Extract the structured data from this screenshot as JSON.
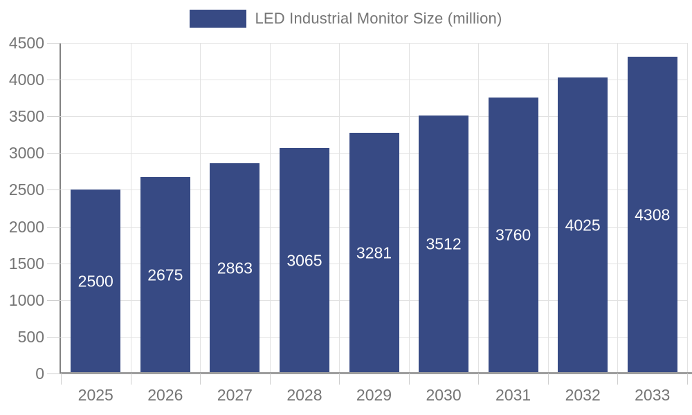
{
  "legend": {
    "label": "LED Industrial Monitor Size (million)",
    "swatch_color": "#374a84"
  },
  "chart_data": {
    "type": "bar",
    "title": "",
    "xlabel": "",
    "ylabel": "",
    "categories": [
      "2025",
      "2026",
      "2027",
      "2028",
      "2029",
      "2030",
      "2031",
      "2032",
      "2033"
    ],
    "series": [
      {
        "name": "LED Industrial Monitor Size (million)",
        "values": [
          2500,
          2675,
          2863,
          3065,
          3281,
          3512,
          3760,
          4025,
          4308
        ]
      }
    ],
    "value_labels_shown": true,
    "ylim": [
      0,
      4500
    ],
    "ytick_step": 500,
    "ytick_labels": [
      "0",
      "500",
      "1000",
      "1500",
      "2000",
      "2500",
      "3000",
      "3500",
      "4000",
      "4500"
    ],
    "grid": true,
    "legend_position": "top-center",
    "bar_color": "#374a84",
    "value_label_color": "#ffffff",
    "axis_text_color": "#757575",
    "gridline_color": "#e2e2e2"
  }
}
